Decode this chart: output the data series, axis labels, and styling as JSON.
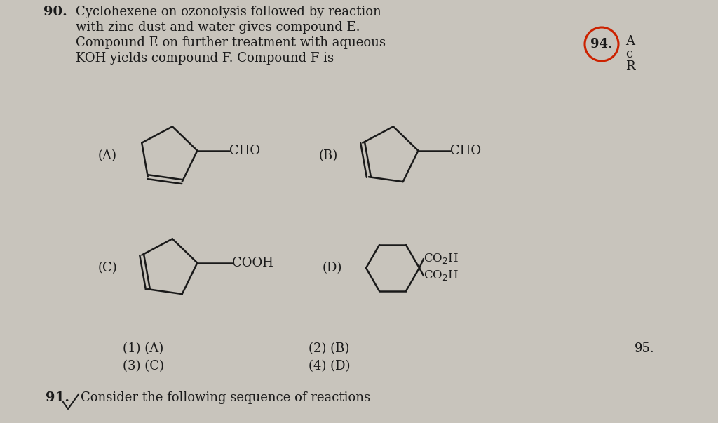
{
  "bg_color": "#c8c4bc",
  "text_color": "#1a1a1a",
  "question_number": "90.",
  "question_text_line1": "Cyclohexene on ozonolysis followed by reaction",
  "question_text_line2": "with zinc dust and water gives compound E.",
  "question_text_line3": "Compound E on further treatment with aqueous",
  "question_text_line4": "KOH yields compound F. Compound F is",
  "side_number": "94.",
  "next_question": "95.",
  "bottom_text": "Consider the following sequence of reactions"
}
